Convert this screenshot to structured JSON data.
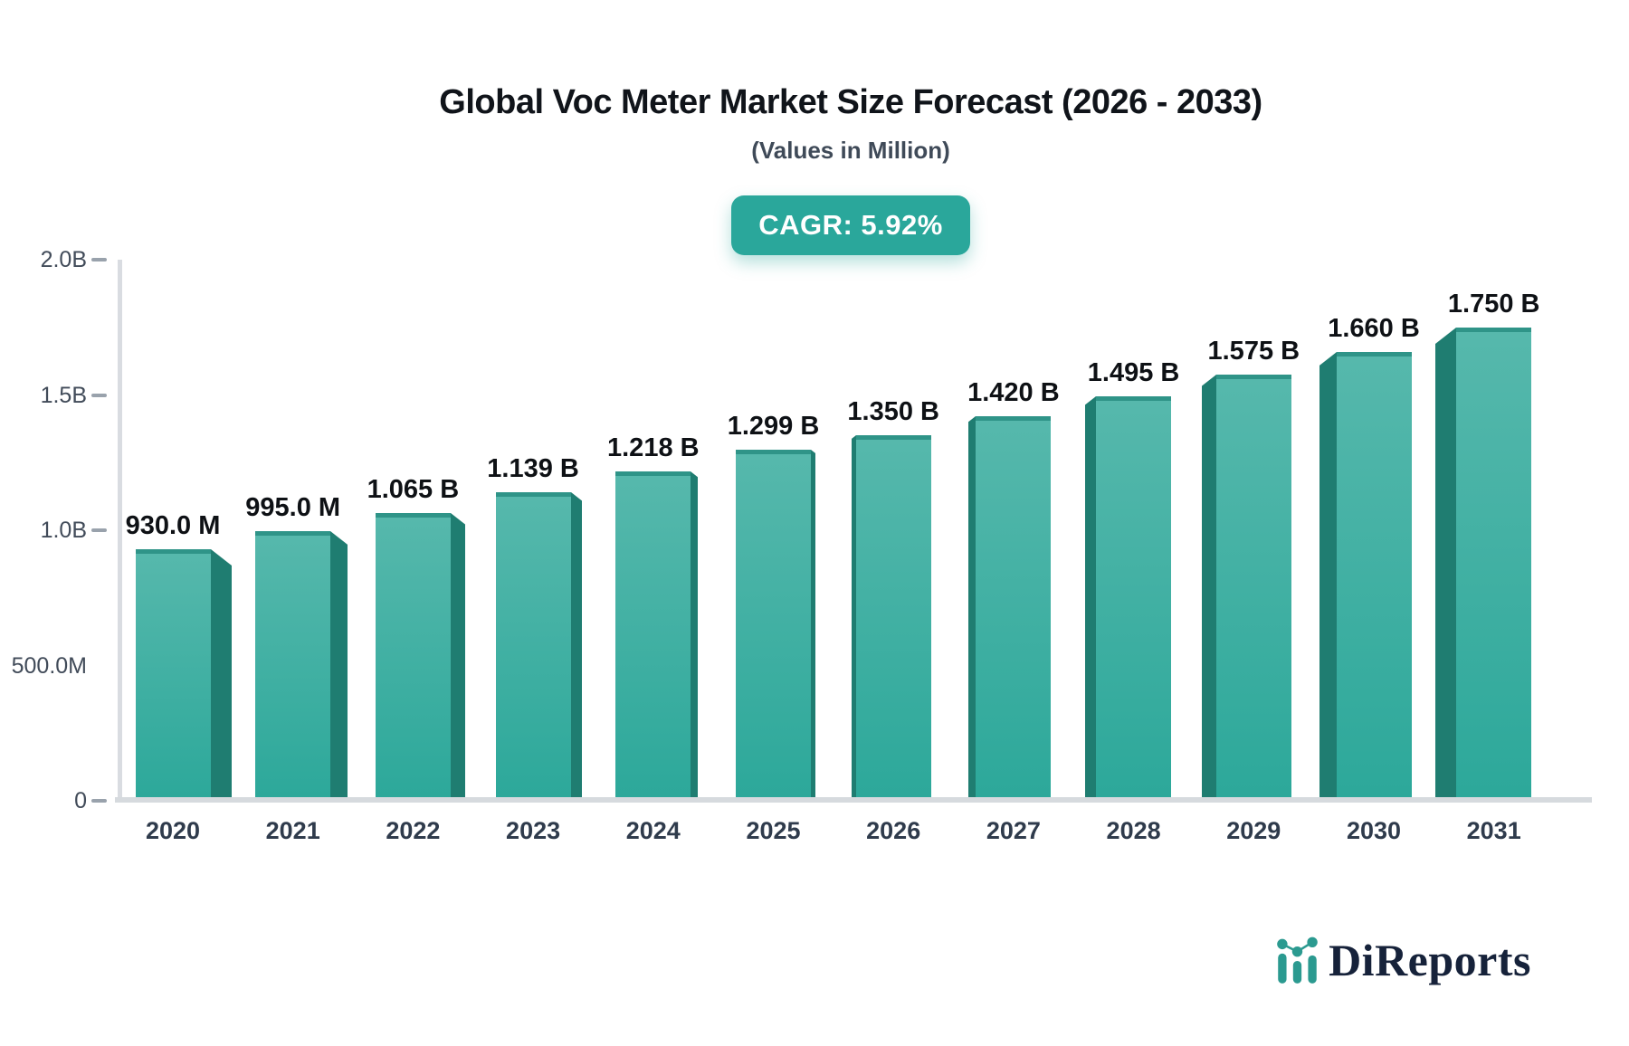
{
  "header": {
    "title": "Global Voc Meter Market Size Forecast (2026 - 2033)",
    "subtitle": "(Values in Million)",
    "cagr_badge": "CAGR: 5.92%"
  },
  "chart_data": {
    "type": "bar",
    "style": "3d-perspective-columns",
    "title": "Global Voc Meter Market Size Forecast (2026 - 2033)",
    "subtitle": "(Values in Million)",
    "cagr_percent": 5.92,
    "categories": [
      "2020",
      "2021",
      "2022",
      "2023",
      "2024",
      "2025",
      "2026",
      "2027",
      "2028",
      "2029",
      "2030",
      "2031"
    ],
    "values_millions": [
      930,
      995,
      1065,
      1139,
      1218,
      1299,
      1350,
      1420,
      1495,
      1575,
      1660,
      1750
    ],
    "bar_labels": [
      "930.0 M",
      "995.0 M",
      "1.065 B",
      "1.139 B",
      "1.218 B",
      "1.299 B",
      "1.350 B",
      "1.420 B",
      "1.495 B",
      "1.575 B",
      "1.660 B",
      "1.750 B"
    ],
    "xlabel": "",
    "ylabel": "",
    "ylim_millions": [
      0,
      2000
    ],
    "y_ticks": [
      {
        "label": "2.0B",
        "value_millions": 2000,
        "dash": true
      },
      {
        "label": "1.5B",
        "value_millions": 1500,
        "dash": true
      },
      {
        "label": "1.0B",
        "value_millions": 1000,
        "dash": true
      },
      {
        "label": "500.0M",
        "value_millions": 500,
        "dash": false
      },
      {
        "label": "0",
        "value_millions": 0,
        "dash": true
      }
    ],
    "grid": false,
    "legend": false,
    "colors": {
      "accent": "#2aa79b",
      "bar_front_top": "#56b8ac",
      "bar_front_bottom": "#2ca89a",
      "bar_top_edge": "#2f9488",
      "bar_side": "#1f7d71",
      "axis": "#d6dade",
      "value_label": "#0e1115",
      "year_label": "#2f3b4c"
    }
  },
  "footer": {
    "logo_text": "DiReports",
    "logo_icon": "mini-bar-chart-logo-icon",
    "logo_icon_color": "#2b9a90",
    "logo_text_color": "#16223a"
  }
}
